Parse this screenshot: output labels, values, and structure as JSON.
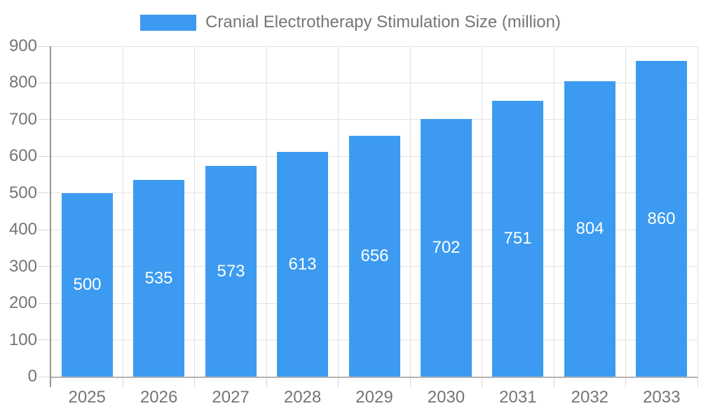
{
  "legend": {
    "position": "top"
  },
  "chart_data": {
    "type": "bar",
    "title": "Cranial Electrotherapy Stimulation Size (million)",
    "categories": [
      "2025",
      "2026",
      "2027",
      "2028",
      "2029",
      "2030",
      "2031",
      "2032",
      "2033"
    ],
    "values": [
      500,
      535,
      573,
      613,
      656,
      702,
      751,
      804,
      860
    ],
    "xlabel": "",
    "ylabel": "",
    "ylim": [
      0,
      900
    ],
    "ytick_step": 100,
    "grid": true,
    "legend_position": "top",
    "value_labels": "inside-center",
    "colors": {
      "bar": "#3C9BF0",
      "axis_label": "#757575",
      "grid_line": "#E2E2E2",
      "axis_line_y": "#969696",
      "axis_line_x": "#B4B4B4",
      "tick": "#D6D6D6",
      "value_label": "#FFFFFF",
      "background": "#FFFFFF"
    }
  }
}
